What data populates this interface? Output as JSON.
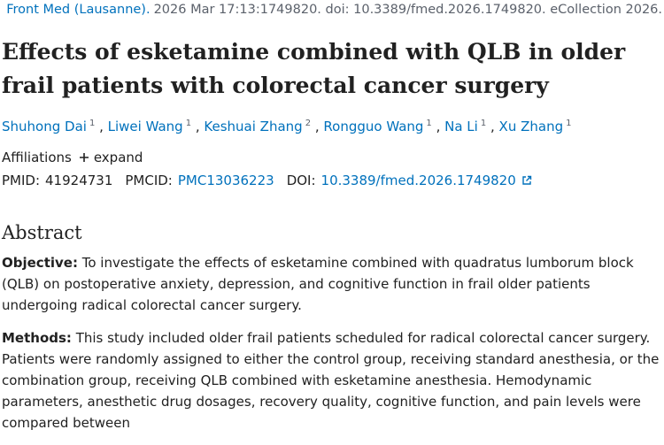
{
  "citation": {
    "journal": "Front Med (Lausanne).",
    "details": "2026 Mar 17:13:1749820. doi: 10.3389/fmed.2026.1749820. eCollection 2026."
  },
  "title": "Effects of esketamine combined with QLB in older frail patients with colorectal cancer surgery",
  "authors": [
    {
      "name": "Shuhong Dai",
      "affiliation": "1"
    },
    {
      "name": "Liwei Wang",
      "affiliation": "1"
    },
    {
      "name": "Keshuai Zhang",
      "affiliation": "2"
    },
    {
      "name": "Rongguo Wang",
      "affiliation": "1"
    },
    {
      "name": "Na Li",
      "affiliation": "1"
    },
    {
      "name": "Xu Zhang",
      "affiliation": "1"
    }
  ],
  "affiliations": {
    "label": "Affiliations",
    "toggle": "expand"
  },
  "identifiers": [
    {
      "label": "PMID:",
      "value": "41924731"
    },
    {
      "label": "PMCID:",
      "value": "PMC13036223"
    },
    {
      "label": "DOI:",
      "value": "10.3389/fmed.2026.1749820"
    }
  ],
  "abstract": {
    "heading": "Abstract",
    "sections": [
      {
        "label": "Objective:",
        "text": "To investigate the effects of esketamine combined with quadratus lumborum block (QLB) on postoperative anxiety, depression, and cognitive function in frail older patients undergoing radical colorectal cancer surgery."
      },
      {
        "label": "Methods:",
        "text": "This study included older frail patients scheduled for radical colorectal cancer surgery. Patients were randomly assigned to either the control group, receiving standard anesthesia, or the combination group, receiving QLB combined with esketamine anesthesia. Hemodynamic parameters, anesthetic drug dosages, recovery quality, cognitive function, and pain levels were compared between"
      }
    ]
  }
}
